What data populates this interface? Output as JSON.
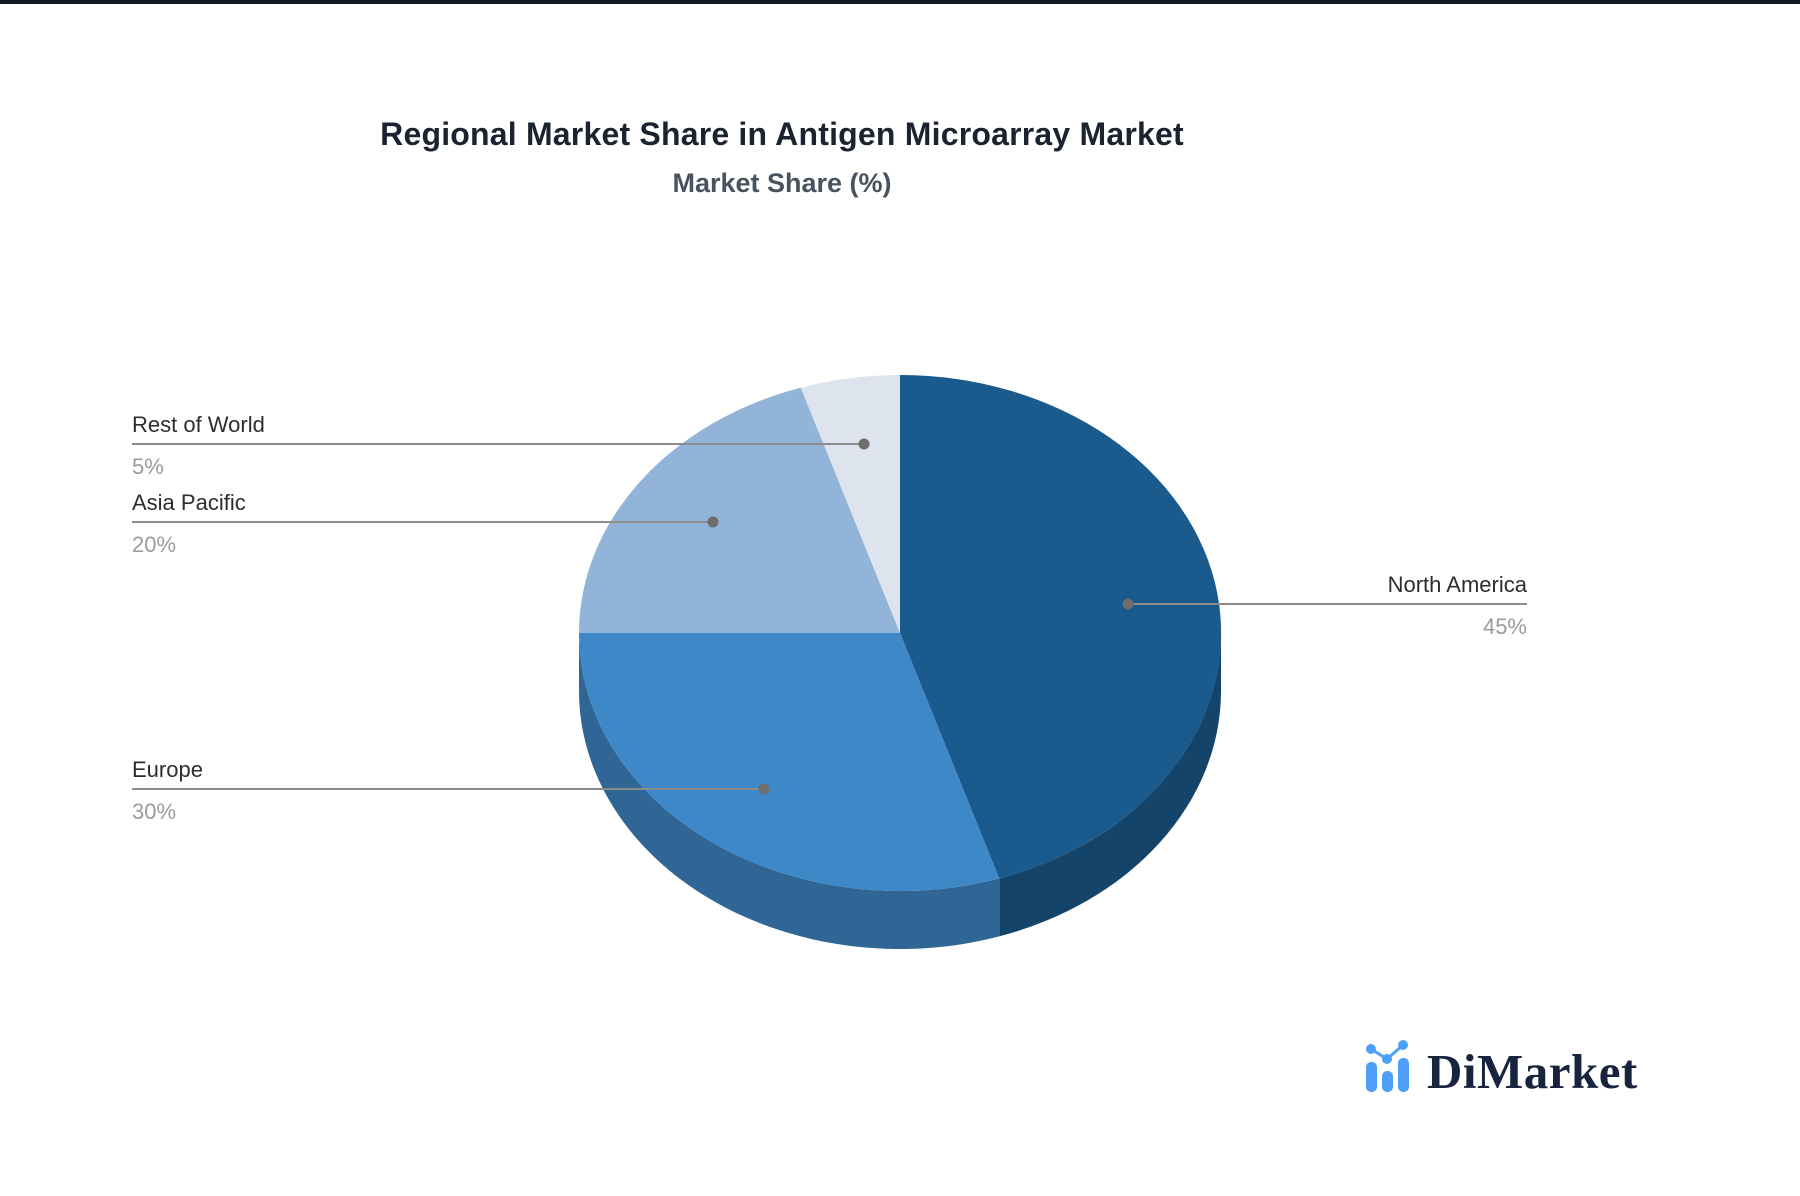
{
  "chart_data": {
    "type": "pie",
    "effect": "3d",
    "title": "Regional Market Share in Antigen Microarray Market",
    "subtitle": "Market Share (%)",
    "legend_position": "callout-labels",
    "start_angle_deg": 0,
    "direction": "clockwise",
    "slices": [
      {
        "label": "North America",
        "value": 45,
        "pct_label": "45%",
        "color": "#1B5A8C"
      },
      {
        "label": "Europe",
        "value": 30,
        "pct_label": "30%",
        "color": "#3E88C8"
      },
      {
        "label": "Asia Pacific",
        "value": 20,
        "pct_label": "20%",
        "color": "#92B4D8"
      },
      {
        "label": "Rest of World",
        "value": 5,
        "pct_label": "5%",
        "color": "#DDE4EE"
      }
    ]
  },
  "branding": {
    "logo_text": "DiMarket",
    "logo_icon": "bar-chart-icon",
    "logo_text_color": "#18243D",
    "logo_icon_color": "#4DA0F5"
  },
  "colors": {
    "title": "#1B2230",
    "subtitle": "#47535F",
    "label_text": "#2D2D2D",
    "pct_text": "#9B9B9B",
    "leader_line": "#8C8C8C",
    "leader_dot": "#6E6E6E",
    "top_rule": "#101822",
    "background": "#FFFFFF"
  }
}
